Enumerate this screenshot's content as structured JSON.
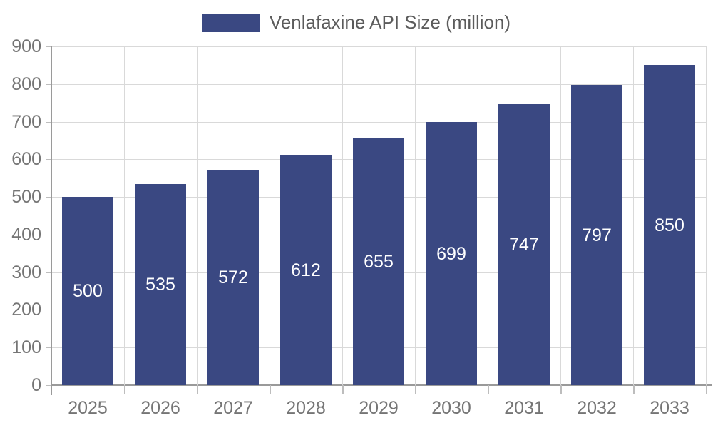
{
  "chart_data": {
    "type": "bar",
    "title": "",
    "legend": "Venlafaxine API Size (million)",
    "legend_position": "top-center",
    "categories": [
      "2025",
      "2026",
      "2027",
      "2028",
      "2029",
      "2030",
      "2031",
      "2032",
      "2033"
    ],
    "values": [
      500,
      535,
      572,
      612,
      655,
      699,
      747,
      797,
      850
    ],
    "xlabel": "",
    "ylabel": "",
    "ylim": [
      0,
      900
    ],
    "yticks": [
      0,
      100,
      200,
      300,
      400,
      500,
      600,
      700,
      800,
      900
    ],
    "grid": true,
    "colors": {
      "bar": "#3A4882",
      "bar_label": "#ffffff",
      "grid_line": "#d9d9d9",
      "axis_line": "#9a9a9a",
      "tick_mark": "#bdbdbd",
      "tick_label": "#757575",
      "legend_text": "#5b5b5b",
      "background": "#ffffff"
    }
  }
}
